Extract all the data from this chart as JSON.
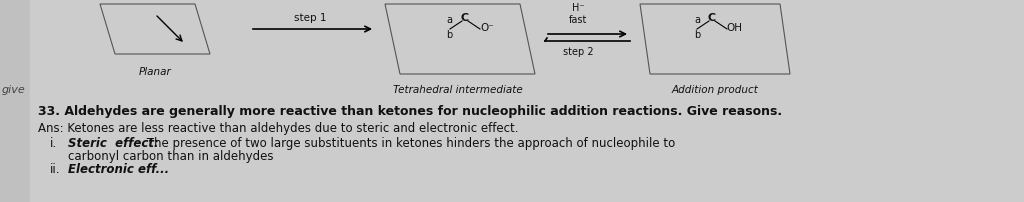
{
  "bg_color": "#c0c0c0",
  "give_text": "give",
  "planar_label": "Planar",
  "step1_label": "step 1",
  "tetrahedral_label": "Tetrahedral intermediate",
  "fast_label": "fast",
  "step2_label": "step 2",
  "h_label": "H⁻",
  "addition_label": "Addition product",
  "title_text": "33. Aldehydes are generally more reactive than ketones for nucleophilic addition reactions. Give reasons.",
  "ans_text": "Ans: Ketones are less reactive than aldehydes due to steric and electronic effect.",
  "item_i_num": "i.",
  "item_i_bold": "Steric  effect:",
  "item_i_rest": " The presence of two large substituents in ketones hinders the approach of nucleophile to",
  "item_i_cont": "carbonyl carbon than in aldehydes",
  "item_ii_num": "ii.",
  "item_ii_bold": "Electronic eff...",
  "text_color": "#111111",
  "gray_text": "#444444",
  "font_size_title": 9,
  "font_size_body": 8.5,
  "font_size_small": 7.5
}
